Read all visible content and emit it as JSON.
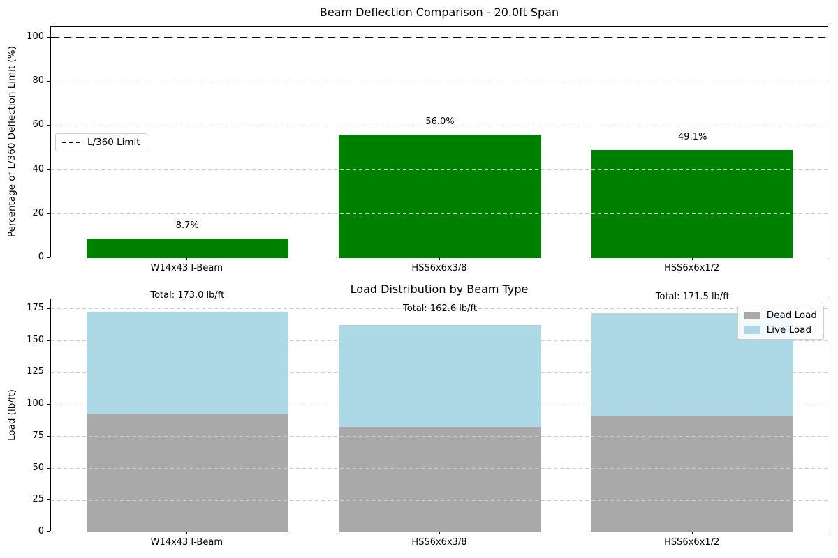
{
  "figure": {
    "background": "#ffffff"
  },
  "chart_data": [
    {
      "type": "bar",
      "title": "Beam Deflection Comparison - 20.0ft Span",
      "ylabel": "Percentage of L/360 Deflection Limit (%)",
      "xlabel": "",
      "categories": [
        "W14x43 I-Beam",
        "HSS6x6x3/8",
        "HSS6x6x1/2"
      ],
      "values": [
        8.7,
        56.0,
        49.1
      ],
      "bar_labels": [
        "8.7%",
        "56.0%",
        "49.1%"
      ],
      "bar_color": "#008000",
      "ylim": [
        0,
        105
      ],
      "yticks": [
        0,
        20,
        40,
        60,
        80,
        100
      ],
      "grid": true,
      "grid_color": "#cccccc",
      "threshold": {
        "value": 100,
        "color": "#000000",
        "style": "dashed"
      },
      "legend": {
        "position": "center-left",
        "label": "L/360 Limit"
      }
    },
    {
      "type": "bar",
      "stacked": true,
      "title": "Load Distribution by Beam Type",
      "ylabel": "Load (lb/ft)",
      "xlabel": "",
      "categories": [
        "W14x43 I-Beam",
        "HSS6x6x3/8",
        "HSS6x6x1/2"
      ],
      "series": [
        {
          "name": "Dead Load",
          "color": "#a9a9a9",
          "values": [
            93.0,
            82.6,
            91.5
          ]
        },
        {
          "name": "Live Load",
          "color": "#add8e6",
          "values": [
            80.0,
            80.0,
            80.0
          ]
        }
      ],
      "totals": [
        173.0,
        162.6,
        171.5
      ],
      "total_labels": [
        "Total: 173.0 lb/ft",
        "Total: 162.6 lb/ft",
        "Total: 171.5 lb/ft"
      ],
      "ylim": [
        0,
        182.6
      ],
      "yticks": [
        0,
        25,
        50,
        75,
        100,
        125,
        150,
        175
      ],
      "grid": true,
      "grid_color": "#cccccc",
      "legend": {
        "position": "top-right"
      }
    }
  ]
}
